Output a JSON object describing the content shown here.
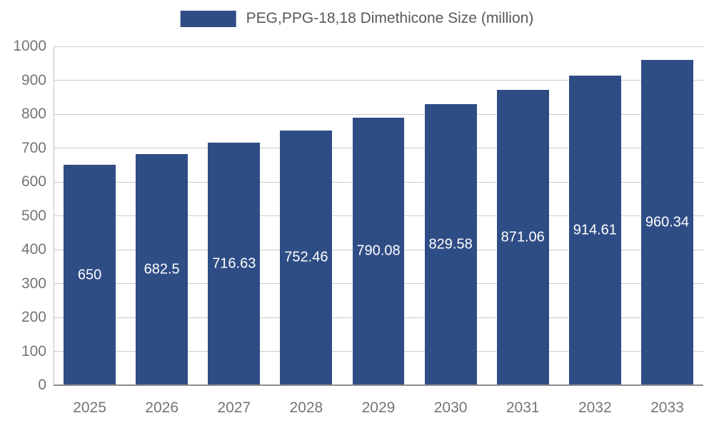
{
  "chart_data": {
    "type": "bar",
    "title": "PEG,PPG-18,18 Dimethicone Size (million)",
    "categories": [
      "2025",
      "2026",
      "2027",
      "2028",
      "2029",
      "2030",
      "2031",
      "2032",
      "2033"
    ],
    "values": [
      650,
      682.5,
      716.63,
      752.46,
      790.08,
      829.58,
      871.06,
      914.61,
      960.34
    ],
    "value_labels": [
      "650",
      "682.5",
      "716.63",
      "752.46",
      "790.08",
      "829.58",
      "871.06",
      "914.61",
      "960.34"
    ],
    "xlabel": "",
    "ylabel": "",
    "ylim": [
      0,
      1000
    ],
    "ytick_step": 100,
    "ytick_labels": [
      "0",
      "100",
      "200",
      "300",
      "400",
      "500",
      "600",
      "700",
      "800",
      "900",
      "1000"
    ],
    "grid": true,
    "legend_position": "top-center",
    "colors": {
      "bar": "#2f4d85",
      "grid": "#cccccc",
      "axis": "#8c8c8c",
      "tick_text": "#757575",
      "value_label_text": "#ffffff",
      "legend_text": "#595959"
    }
  }
}
